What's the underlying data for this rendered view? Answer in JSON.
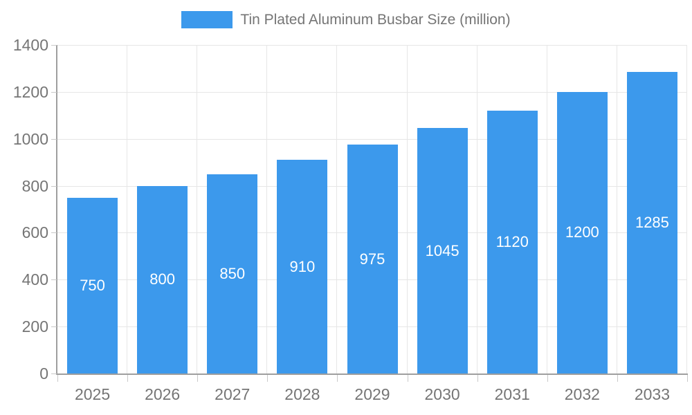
{
  "chart_data": {
    "type": "bar",
    "legend": "Tin Plated Aluminum Busbar Size (million)",
    "categories": [
      "2025",
      "2026",
      "2027",
      "2028",
      "2029",
      "2030",
      "2031",
      "2032",
      "2033"
    ],
    "values": [
      750,
      800,
      850,
      910,
      975,
      1045,
      1120,
      1200,
      1285
    ],
    "title": "",
    "xlabel": "",
    "ylabel": "",
    "ylim": [
      0,
      1400
    ],
    "yticks": [
      0,
      200,
      400,
      600,
      800,
      1000,
      1200,
      1400
    ],
    "grid": true,
    "legend_position": "top",
    "colors": {
      "bar": "#3c99ec",
      "bar_label": "#ffffff",
      "grid": "#e6e6e6",
      "axis": "#9e9e9e",
      "tick": "#c9c9c9",
      "text": "#757575"
    }
  }
}
